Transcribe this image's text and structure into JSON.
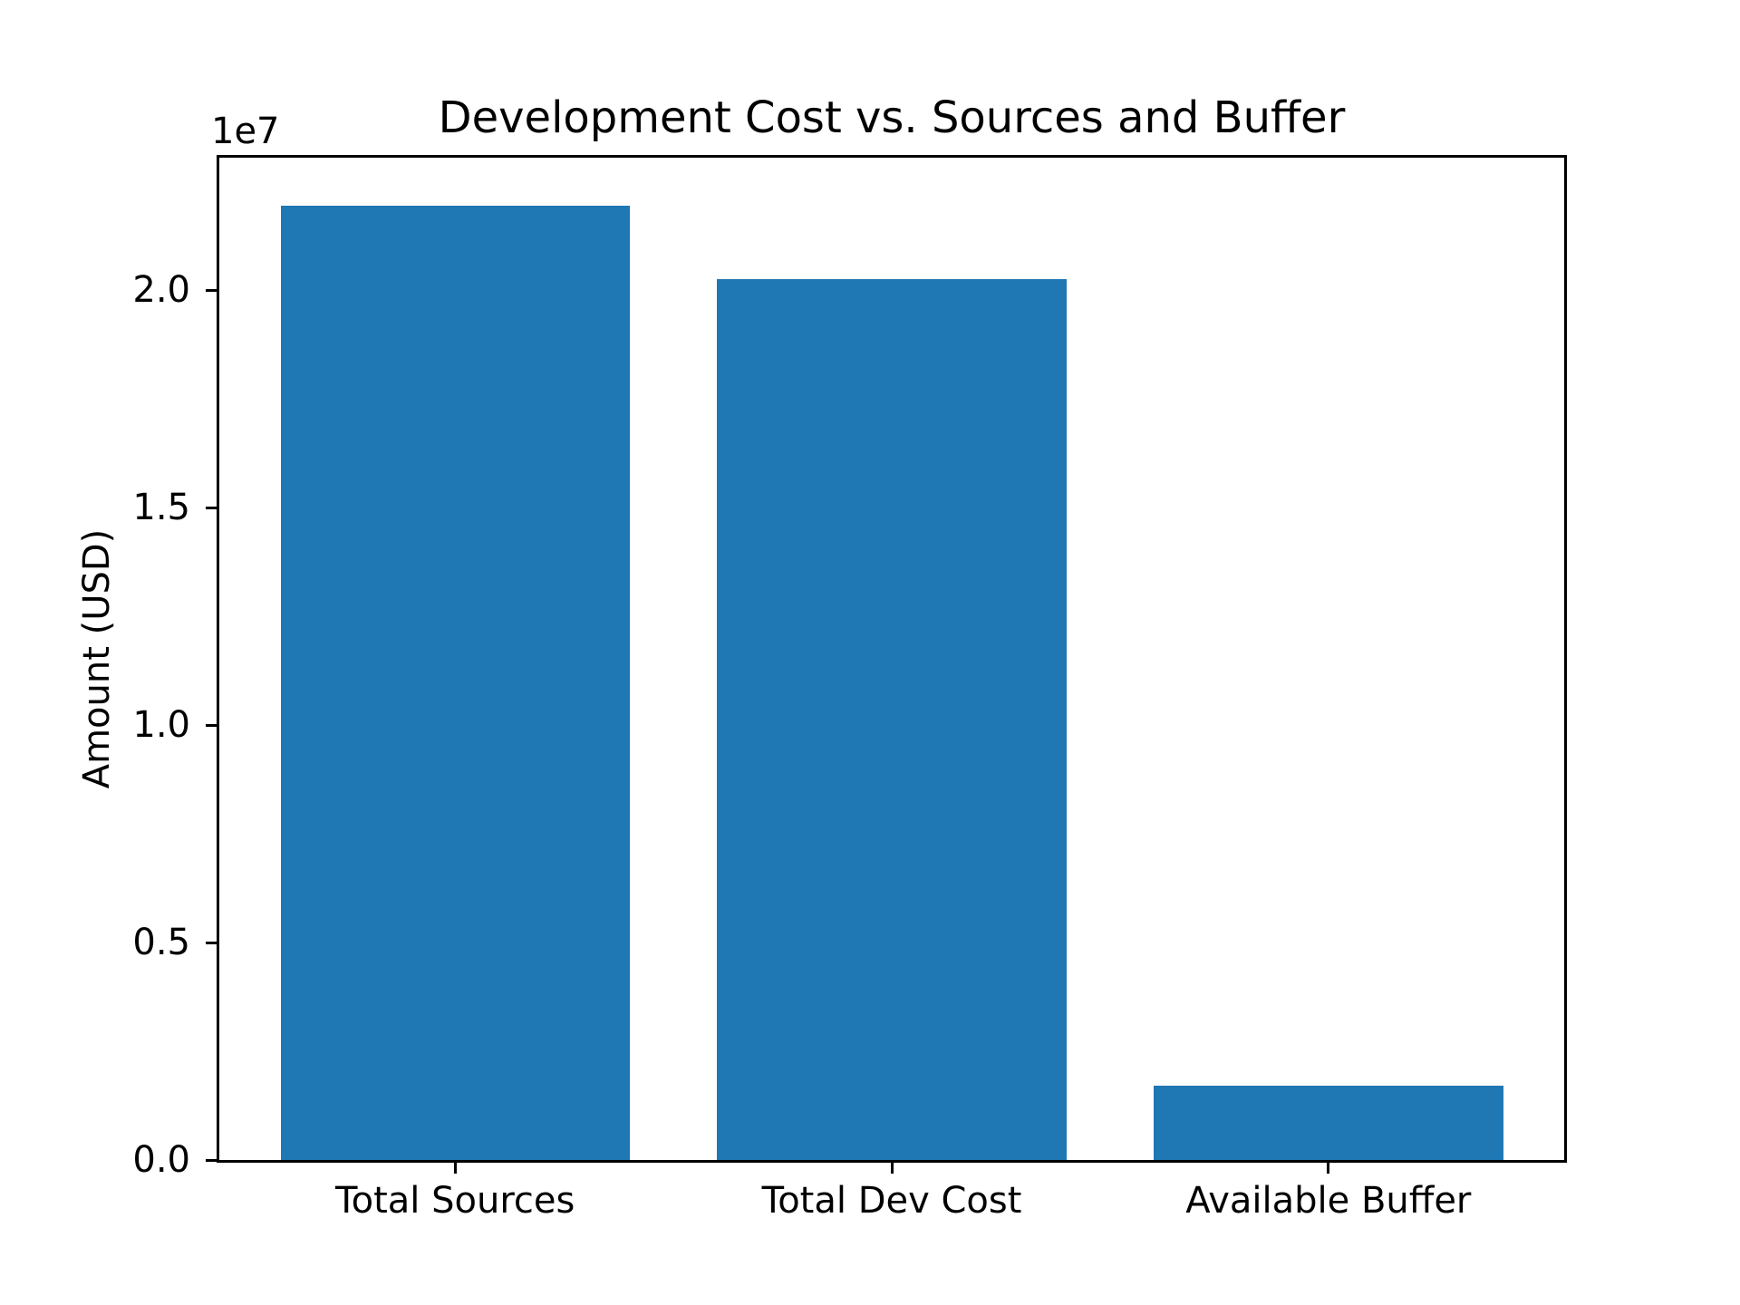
{
  "chart_data": {
    "type": "bar",
    "title": "Development Cost vs. Sources and Buffer",
    "xlabel": "",
    "ylabel": "Amount (USD)",
    "categories": [
      "Total Sources",
      "Total Dev Cost",
      "Available Buffer"
    ],
    "values": [
      21950000,
      20250000,
      1700000
    ],
    "ylim": [
      0,
      23047500
    ],
    "yticks": {
      "values": [
        0,
        5000000,
        10000000,
        15000000,
        20000000
      ],
      "labels": [
        "0.0",
        "0.5",
        "1.0",
        "1.5",
        "2.0"
      ]
    },
    "offset_text": "1e7",
    "bar_color": "#1f77b4",
    "axis_color": "#000000",
    "background_color": "#ffffff",
    "bar_width_fraction": 0.8,
    "x_margin": 0.05,
    "grid": false,
    "legend": null
  }
}
